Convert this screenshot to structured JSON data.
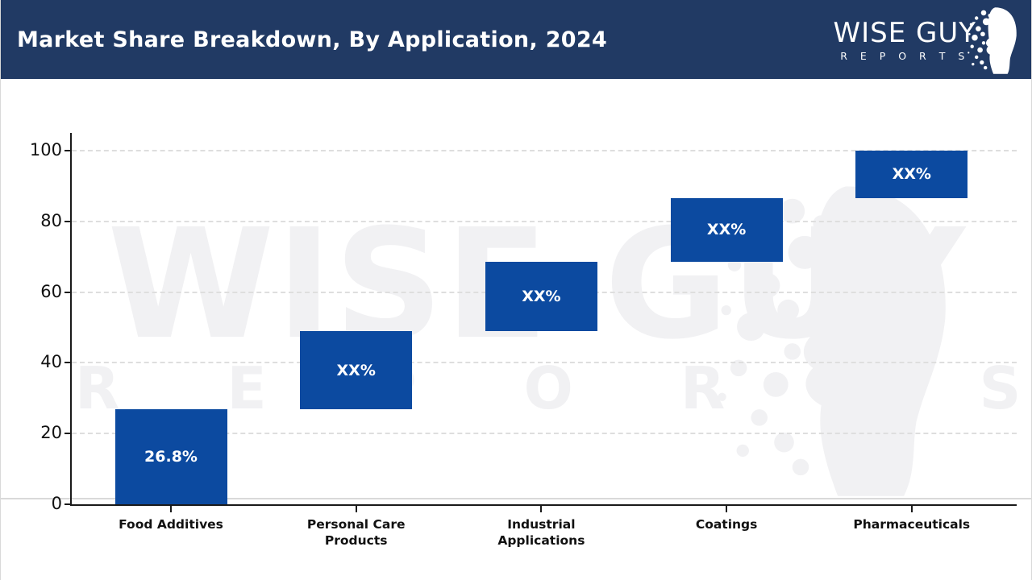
{
  "header": {
    "title": "Market Share Breakdown, By Application, 2024",
    "logo": {
      "line1": "WISE GUY",
      "line2": "R E P O R T S"
    }
  },
  "watermark": {
    "line1": "WISE GUY",
    "line2": "R E P O R T S"
  },
  "colors": {
    "header_bg": "#213a64",
    "bar": "#0c4aa0",
    "bar_label": "#ffffff",
    "axis": "#1a1a1a",
    "grid": "#dedede",
    "watermark": "#f1f1f3",
    "page_border": "#d9d9d9"
  },
  "chart_data": {
    "type": "bar",
    "variant": "waterfall",
    "title": "Market Share Breakdown, By Application, 2024",
    "categories": [
      "Food Additives",
      "Personal Care Products",
      "Industrial Applications",
      "Coatings",
      "Pharmaceuticals"
    ],
    "segments": [
      {
        "category": "Food Additives",
        "start": 0,
        "end": 26.8,
        "label": "26.8%"
      },
      {
        "category": "Personal Care Products",
        "start": 26.8,
        "end": 49.0,
        "label": "XX%"
      },
      {
        "category": "Industrial Applications",
        "start": 49.0,
        "end": 68.6,
        "label": "XX%"
      },
      {
        "category": "Coatings",
        "start": 68.6,
        "end": 86.6,
        "label": "XX%"
      },
      {
        "category": "Pharmaceuticals",
        "start": 86.6,
        "end": 100,
        "label": "XX%"
      }
    ],
    "yticks": [
      0,
      20,
      40,
      60,
      80,
      100
    ],
    "ylim": [
      0,
      105
    ],
    "xlabel": "",
    "ylabel": "",
    "grid": "horizontal-dashed",
    "legend": "none"
  }
}
